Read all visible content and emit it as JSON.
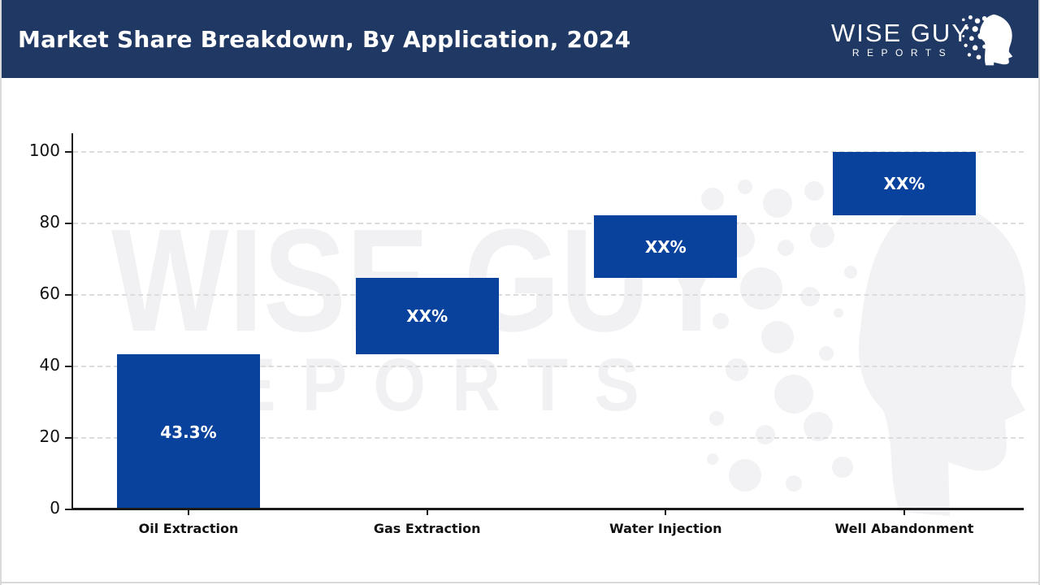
{
  "header": {
    "title": "Market Share Breakdown, By Application, 2024",
    "logo": {
      "line1": "WISE GUY",
      "line2": "REPORTS",
      "face_icon": "head-profile-dots-icon"
    }
  },
  "watermark": {
    "line1": "WISE GUY",
    "line2": "REPORTS",
    "face_icon": "head-profile-dots-watermark"
  },
  "colors": {
    "header_bg": "#203864",
    "bar": "#08429c",
    "axis": "#1a1a1a",
    "grid": "#dcdcdc",
    "bar_label": "#ffffff",
    "tick_label": "#111111",
    "watermark": "#f1f1f4",
    "bottom_rule": "#d9d9d9"
  },
  "chart_data": {
    "type": "bar",
    "subtype": "waterfall",
    "title": "Market Share Breakdown, By Application, 2024",
    "categories": [
      "Oil Extraction",
      "Gas Extraction",
      "Water Injection",
      "Well Abandonment"
    ],
    "series": [
      {
        "name": "Market Share",
        "segments": [
          {
            "category": "Oil Extraction",
            "start": 0,
            "end": 43.3,
            "label": "43.3%"
          },
          {
            "category": "Gas Extraction",
            "start": 43.3,
            "end": 64.8,
            "label": "XX%"
          },
          {
            "category": "Water Injection",
            "start": 64.8,
            "end": 82.2,
            "label": "XX%"
          },
          {
            "category": "Well Abandonment",
            "start": 82.2,
            "end": 100,
            "label": "XX%"
          }
        ]
      }
    ],
    "ylim": [
      0,
      100
    ],
    "yticks": [
      0,
      20,
      40,
      60,
      80,
      100
    ],
    "xlabel": "",
    "ylabel": "",
    "grid": "horizontal-dashed",
    "legend": "none"
  }
}
